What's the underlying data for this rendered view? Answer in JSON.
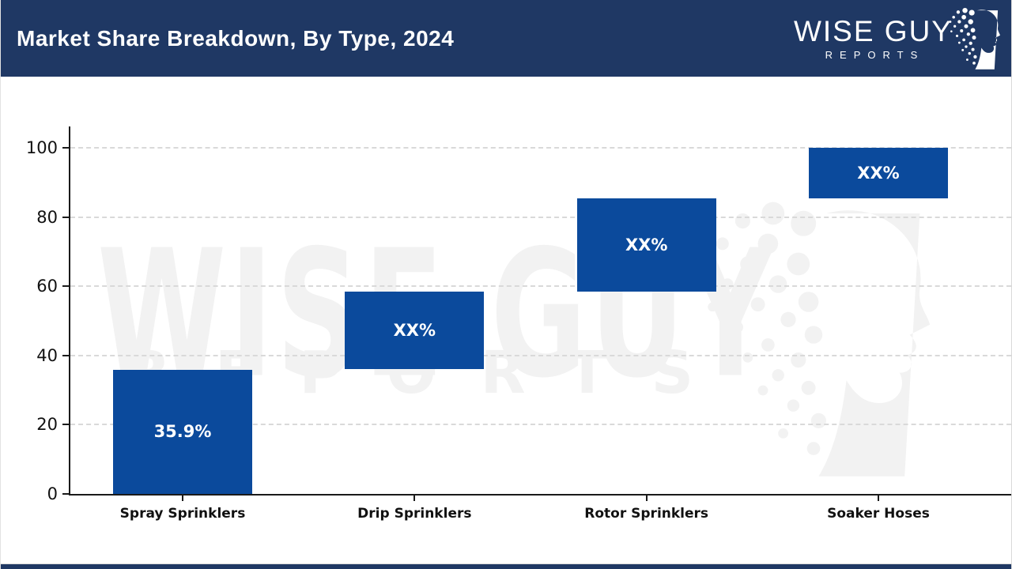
{
  "header": {
    "title": "Market Share Breakdown, By Type, 2024",
    "bg_color": "#1f3864",
    "logo": {
      "line1": "WISE GUY",
      "line2": "REPORTS"
    }
  },
  "watermark": {
    "line1": "WISE GUY",
    "line2": "REPORTS"
  },
  "chart_data": {
    "type": "bar",
    "subtype": "waterfall",
    "title": "Market Share Breakdown, By Type, 2024",
    "categories": [
      "Spray Sprinklers",
      "Drip Sprinklers",
      "Rotor Sprinklers",
      "Soaker Hoses"
    ],
    "series": [
      {
        "name": "Market Share",
        "segments": [
          {
            "category": "Spray Sprinklers",
            "start": 0,
            "end": 35.9,
            "label": "35.9%"
          },
          {
            "category": "Drip Sprinklers",
            "start": 36.1,
            "end": 58.4,
            "label": "XX%"
          },
          {
            "category": "Rotor Sprinklers",
            "start": 58.4,
            "end": 85.4,
            "label": "XX%"
          },
          {
            "category": "Soaker Hoses",
            "start": 85.4,
            "end": 100,
            "label": "XX%"
          }
        ]
      }
    ],
    "xlabel": "",
    "ylabel": "",
    "ylim": [
      0,
      100
    ],
    "yticks": [
      0,
      20,
      40,
      60,
      80,
      100
    ],
    "grid": "horizontal-dashed",
    "legend": "none",
    "bar_color": "#0b4a9c",
    "bar_label_color": "#ffffff",
    "grid_color": "#d9d9d9",
    "axis_color": "#1a1a1a"
  }
}
